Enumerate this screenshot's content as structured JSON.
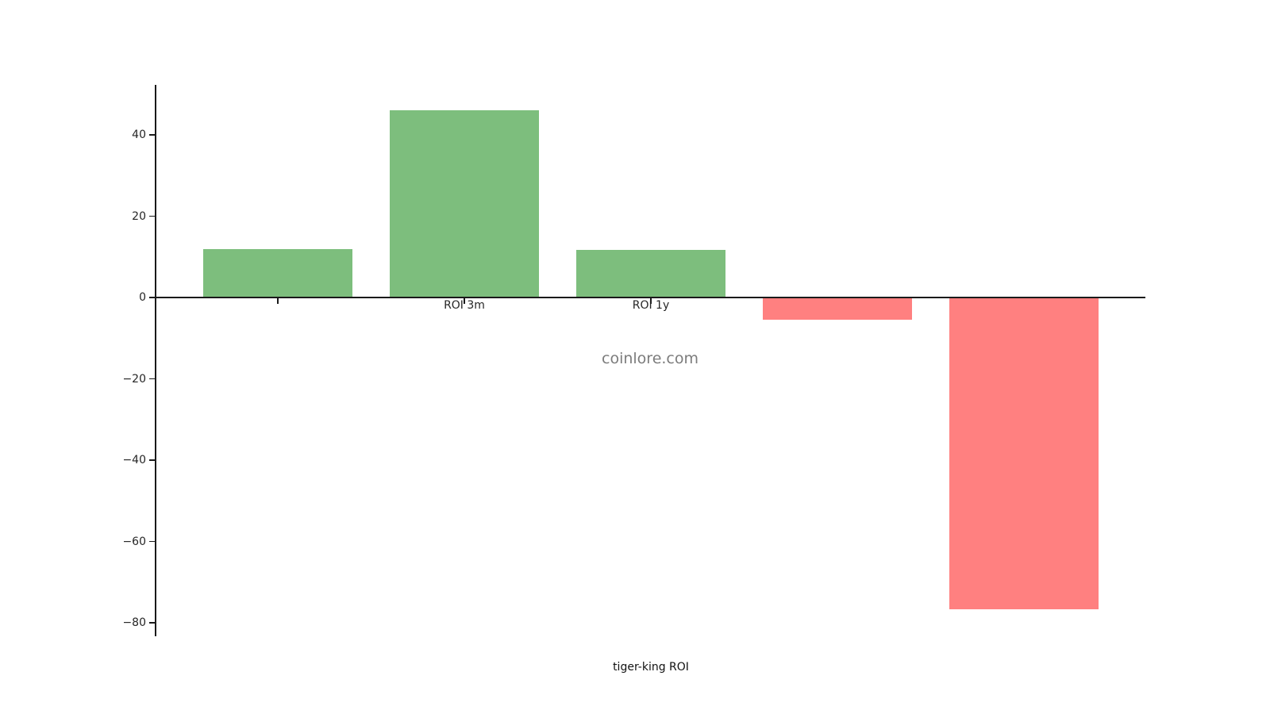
{
  "page": {
    "background": "#ffffff"
  },
  "watermark": {
    "text": "coinlore.com",
    "color": "#7c7c7c"
  },
  "chart_data": {
    "type": "bar",
    "title": "",
    "xlabel": "tiger-king ROI",
    "ylabel": "",
    "categories": [
      "",
      "ROI 3m",
      "ROI 1y",
      "",
      ""
    ],
    "values": [
      12.0,
      46.1,
      11.8,
      -5.5,
      -76.7
    ],
    "series_note": "single series; green = positive ROI, red = negative ROI",
    "bar_colors": {
      "positive": "#7dbe7d",
      "negative": "#ff8080"
    },
    "yticks": [
      40,
      20,
      0,
      -20,
      -40,
      -60,
      -80
    ],
    "ytick_labels": [
      "40",
      "20",
      "0",
      "−20",
      "−40",
      "−60",
      "−80"
    ],
    "ylim": [
      -83.3,
      52.3
    ],
    "grid": false,
    "legend_position": "none",
    "axis_color": "#1a1a1a"
  }
}
